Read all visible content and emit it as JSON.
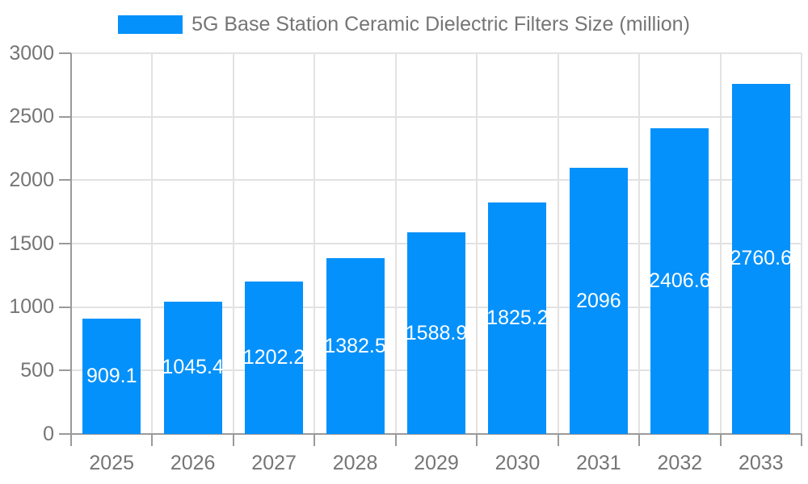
{
  "legend": {
    "label": "5G Base Station Ceramic Dielectric Filters Size (million)"
  },
  "chart_data": {
    "type": "bar",
    "title": "5G Base Station Ceramic Dielectric Filters Size (million)",
    "categories": [
      "2025",
      "2026",
      "2027",
      "2028",
      "2029",
      "2030",
      "2031",
      "2032",
      "2033"
    ],
    "series": [
      {
        "name": "5G Base Station Ceramic Dielectric Filters Size (million)",
        "values": [
          909.1,
          1045.4,
          1202.2,
          1382.5,
          1588.9,
          1825.2,
          2096,
          2406.6,
          2760.6
        ]
      }
    ],
    "value_labels": [
      "909.1",
      "1045.4",
      "1202.2",
      "1382.5",
      "1588.9",
      "1825.2",
      "2096",
      "2406.6",
      "2760.6"
    ],
    "xlabel": "",
    "ylabel": "",
    "ylim": [
      0,
      3000
    ],
    "y_ticks": [
      0,
      500,
      1000,
      1500,
      2000,
      2500,
      3000
    ],
    "y_tick_labels": [
      "0",
      "500",
      "1000",
      "1500",
      "2000",
      "2500",
      "3000"
    ],
    "grid": true,
    "legend_position": "top-center",
    "value_label_position": "inside-center",
    "colors": {
      "bar": "#0591fb",
      "grid": "#e2e2e2",
      "axis": "#9a9a9a",
      "tick_text": "#757575",
      "value_label_text": "#ffffff",
      "background": "#ffffff"
    }
  }
}
